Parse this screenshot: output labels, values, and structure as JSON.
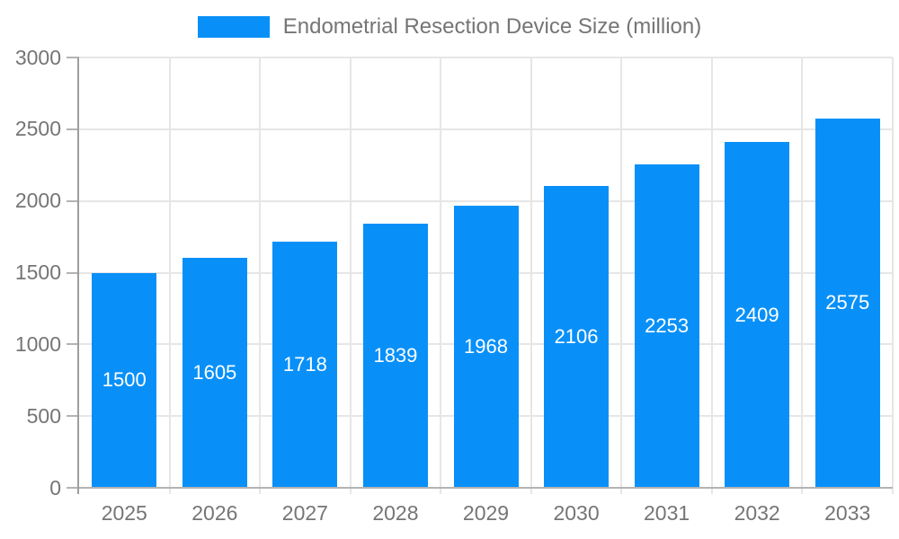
{
  "legend": {
    "label": "Endometrial Resection Device Size (million)"
  },
  "colors": {
    "bar": "#0990f8",
    "bar_label": "#ffffff",
    "axis_label": "#757575",
    "gridline": "#e6e6e6",
    "x_axis_line": "#b3b3b3",
    "y_axis_line": "#9e9e9e",
    "tick": "#b3b3b3"
  },
  "chart_data": {
    "type": "bar",
    "title": "",
    "xlabel": "",
    "ylabel": "",
    "categories": [
      "2025",
      "2026",
      "2027",
      "2028",
      "2029",
      "2030",
      "2031",
      "2032",
      "2033"
    ],
    "series": [
      {
        "name": "Endometrial Resection Device Size (million)",
        "values": [
          1500,
          1605,
          1718,
          1839,
          1968,
          2106,
          2253,
          2409,
          2575
        ]
      }
    ],
    "bar_labels": [
      "1500",
      "1605",
      "1718",
      "1839",
      "1968",
      "2106",
      "2253",
      "2409",
      "2575"
    ],
    "ylim": [
      0,
      3000
    ],
    "yticks": [
      0,
      500,
      1000,
      1500,
      2000,
      2500,
      3000
    ],
    "grid": true,
    "legend_position": "top-center"
  }
}
